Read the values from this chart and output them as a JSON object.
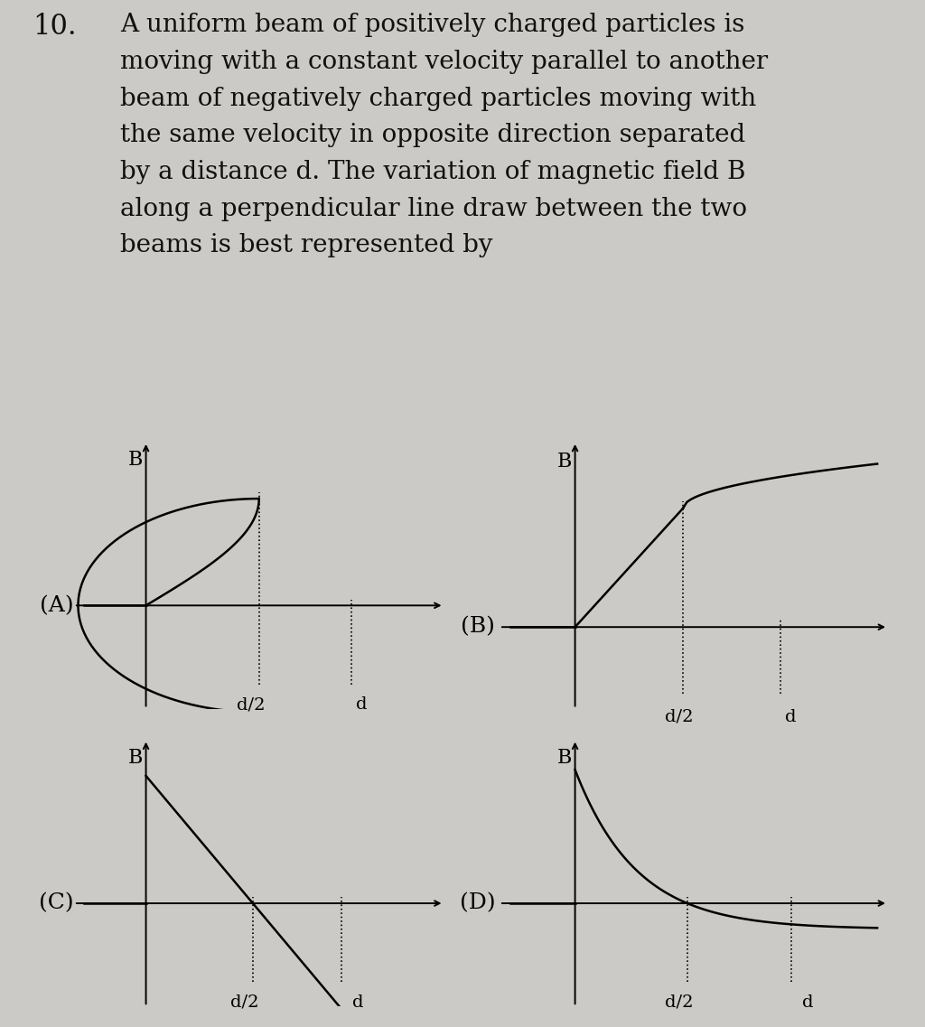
{
  "title_number": "10.",
  "question_text": "A uniform beam of positively charged particles is\nmoving with a constant velocity parallel to another\nbeam of negatively charged particles moving with\nthe same velocity in opposite direction separated\nby a distance d. The variation of magnetic field B\nalong a perpendicular line draw between the two\nbeams is best represented by",
  "background_color": "#cccac6",
  "text_color": "#111111",
  "labels": [
    "(A)",
    "(B)",
    "(C)",
    "(D)"
  ],
  "axis_label_B": "B",
  "axis_label_d2": "d/2",
  "axis_label_d": "d",
  "font_size_question": 20,
  "font_size_label": 18,
  "font_size_axis": 14
}
